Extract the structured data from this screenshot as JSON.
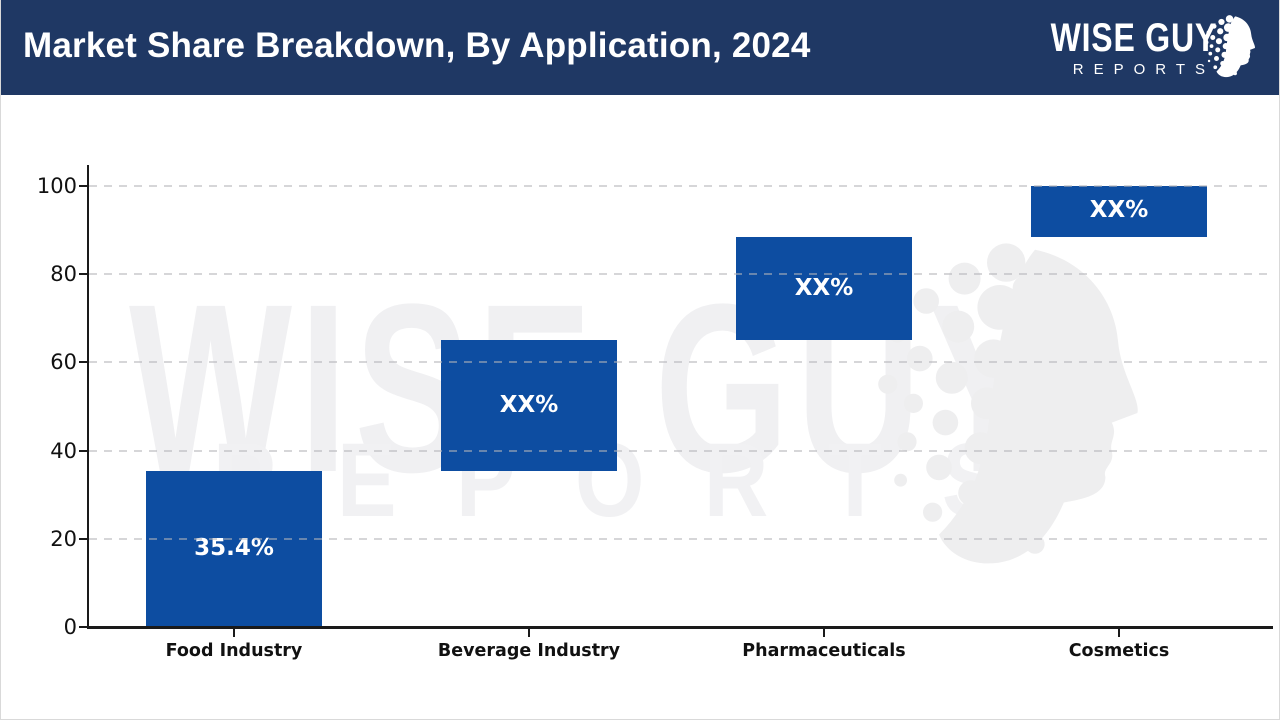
{
  "header": {
    "title": "Market Share Breakdown, By Application, 2024",
    "logo": {
      "line1": "WISE GUY",
      "line2": "REPORTS",
      "icon": "wise-guy-head-icon"
    }
  },
  "watermark": {
    "line1": "WISE GUY",
    "line2": "REPORTS"
  },
  "colors": {
    "header_bg": "#1f3864",
    "bar": "#0d4da1",
    "bar_label": "#ffffff",
    "axis": "#1a1a1a",
    "grid": "#d9d9d9",
    "watermark": "#f0f0f2"
  },
  "chart_data": {
    "type": "bar",
    "subtype": "waterfall",
    "title": "Market Share Breakdown, By Application, 2024",
    "xlabel": "",
    "ylabel": "",
    "categories": [
      "Food Industry",
      "Beverage Industry",
      "Pharmaceuticals",
      "Cosmetics"
    ],
    "series": [
      {
        "name": "Market share (%)",
        "segments": [
          {
            "category": "Food Industry",
            "start": 0,
            "end": 35.4,
            "label": "35.4%"
          },
          {
            "category": "Beverage Industry",
            "start": 35.4,
            "end": 65,
            "label": "XX%"
          },
          {
            "category": "Pharmaceuticals",
            "start": 65,
            "end": 88.5,
            "label": "XX%"
          },
          {
            "category": "Cosmetics",
            "start": 88.5,
            "end": 100,
            "label": "XX%"
          }
        ]
      }
    ],
    "yticks": [
      0,
      20,
      40,
      60,
      80,
      100
    ],
    "ylim": [
      0,
      104.7
    ],
    "grid": "horizontal-dashed-over-bars",
    "legend": "none",
    "bar_color": "#0d4da1",
    "label_color": "#ffffff"
  }
}
